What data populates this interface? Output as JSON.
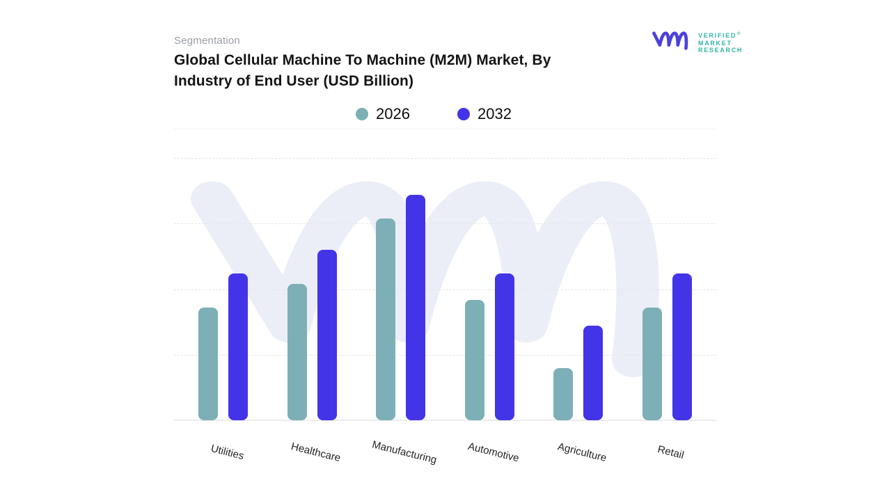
{
  "header": {
    "eyebrow": "Segmentation",
    "title_lines": [
      "Global Cellular Machine To Machine (M2M) Market, By",
      "Industry of End User (USD Billion)"
    ]
  },
  "logo": {
    "lines": [
      "VERIFIED",
      "MARKET",
      "RESEARCH"
    ],
    "registered": "®",
    "monogram_color": "#4b41dc",
    "wordmark_color": "#2fb3a6"
  },
  "legend": {
    "items": [
      {
        "label": "2026",
        "color": "#7cb0b6"
      },
      {
        "label": "2032",
        "color": "#4434e8"
      }
    ]
  },
  "chart_data": {
    "type": "bar",
    "title": "Global Cellular Machine To Machine (M2M) Market, By Industry of End User (USD Billion)",
    "categories": [
      "Utilities",
      "Healthcare",
      "Manufacturing",
      "Automotive",
      "Agriculture",
      "Retail"
    ],
    "series": [
      {
        "name": "2026",
        "color": "#7cb0b6",
        "values": [
          43,
          52,
          77,
          46,
          20,
          43
        ]
      },
      {
        "name": "2032",
        "color": "#4434e8",
        "values": [
          56,
          65,
          86,
          56,
          36,
          56
        ]
      }
    ],
    "xlabel": "",
    "ylabel": "",
    "ylim": [
      0,
      100
    ],
    "value_note": "y-axis is unlabeled; values estimated as percent of chart height",
    "grid": "horizontal-dashed",
    "y_axis_labels_visible": false,
    "legend_position": "top-center",
    "x_label_rotation_deg": 14
  },
  "watermark": {
    "name": "vmr-monogram",
    "color": "#eceef7"
  },
  "colors": {
    "background": "#ffffff",
    "gridline": "#e5e5e8",
    "axis_line": "#ececee",
    "divider": "#efeff1",
    "eyebrow_text": "#999da3",
    "title_text": "#141414",
    "legend_label": "#0e0e0e",
    "category_label": "#262626"
  }
}
